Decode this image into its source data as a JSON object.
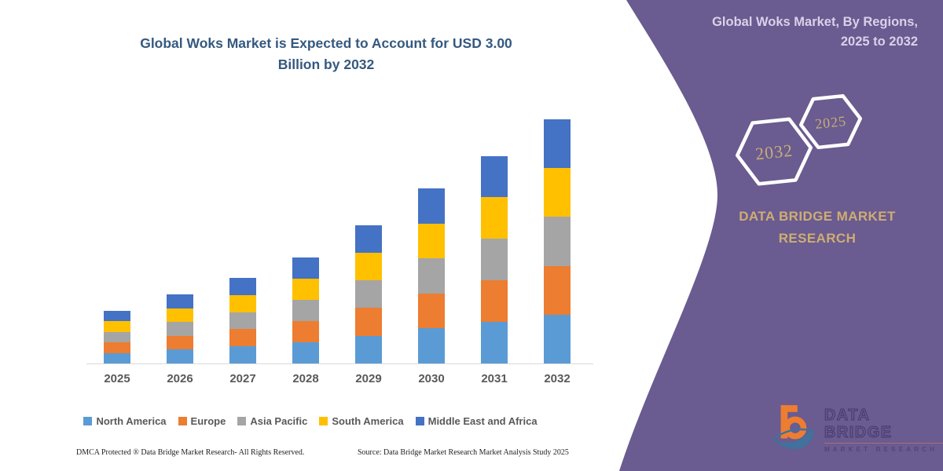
{
  "colors": {
    "panel_purple": "#6a5b90",
    "accent_tan": "#cead73",
    "hex_digit_tan": "#c8ad79",
    "title_blue": "#35597f",
    "axis_text_gray": "#595959",
    "axis_line": "#d9d9d9",
    "logo_orange": "#ED7D31",
    "logo_blue": "#41719C"
  },
  "chart": {
    "title_line1": "Global Woks Market is Expected to Account for USD 3.00",
    "title_line2": "Billion by 2032"
  },
  "chart_data": {
    "type": "bar",
    "stacked": true,
    "title": "Global Woks Market is Expected to Account for USD 3.00 Billion by 2032",
    "unit": "USD Billion",
    "categories": [
      "2025",
      "2026",
      "2027",
      "2028",
      "2029",
      "2030",
      "2031",
      "2032"
    ],
    "series": [
      {
        "name": "North America",
        "color": "#5B9BD5",
        "values": [
          0.13,
          0.17,
          0.21,
          0.26,
          0.34,
          0.43,
          0.51,
          0.6
        ]
      },
      {
        "name": "Europe",
        "color": "#ED7D31",
        "values": [
          0.13,
          0.17,
          0.21,
          0.26,
          0.34,
          0.43,
          0.51,
          0.6
        ]
      },
      {
        "name": "Asia Pacific",
        "color": "#A5A5A5",
        "values": [
          0.13,
          0.17,
          0.21,
          0.26,
          0.34,
          0.43,
          0.51,
          0.6
        ]
      },
      {
        "name": "South America",
        "color": "#FFC000",
        "values": [
          0.13,
          0.17,
          0.21,
          0.26,
          0.34,
          0.43,
          0.51,
          0.6
        ]
      },
      {
        "name": "Middle East and Africa",
        "color": "#4472C4",
        "values": [
          0.13,
          0.17,
          0.21,
          0.26,
          0.34,
          0.43,
          0.51,
          0.6
        ]
      }
    ],
    "totals": [
      0.65,
      0.85,
      1.05,
      1.3,
      1.7,
      2.15,
      2.55,
      3.0
    ],
    "xlabel": "",
    "ylabel": "",
    "ylim": [
      0,
      3.125
    ],
    "grid": false,
    "legend_position": "bottom"
  },
  "footer": {
    "left": "DMCA Protected ® Data Bridge Market Research-  All Rights Reserved.",
    "right": "Source: Data Bridge Market Research  Market Analysis Study 2025"
  },
  "panel": {
    "title_line1": "Global Woks Market, By Regions,",
    "title_line2": "2025 to 2032",
    "hexagons": [
      {
        "label": "2032"
      },
      {
        "label": "2025"
      }
    ],
    "brand_line1": "DATA BRIDGE MARKET",
    "brand_line2": "RESEARCH",
    "logo": {
      "monogram": "b",
      "name": "DATA BRIDGE",
      "subtitle": "MARKET RESEARCH"
    }
  }
}
